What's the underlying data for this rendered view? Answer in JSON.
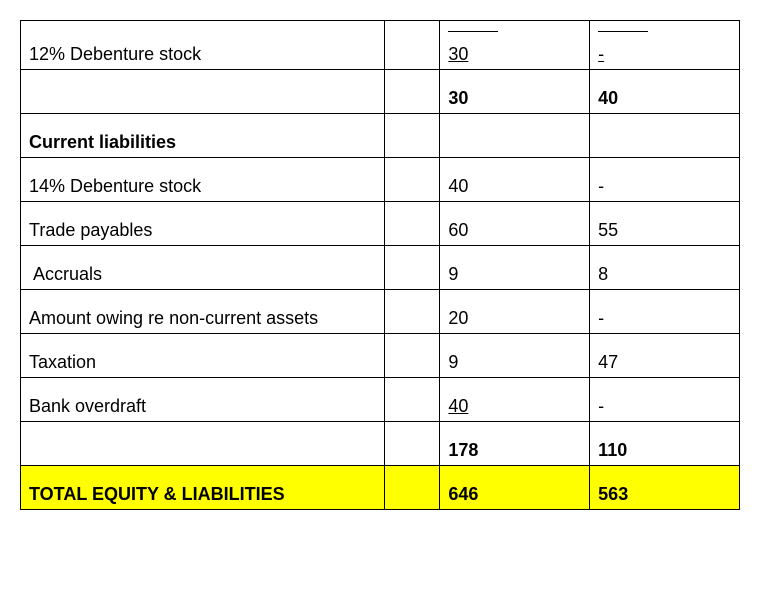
{
  "table": {
    "rows": [
      {
        "label": "12% Debenture stock",
        "label_bold": false,
        "label_extra_pad": false,
        "val1": "30",
        "val1_underline": true,
        "val1_bold": false,
        "val1_topline": true,
        "val2": "-",
        "val2_underline": true,
        "val2_bold": false,
        "val2_topline": true,
        "highlight": false
      },
      {
        "label": "",
        "label_bold": false,
        "label_extra_pad": false,
        "val1": "30",
        "val1_underline": false,
        "val1_bold": true,
        "val1_topline": false,
        "val2": "40",
        "val2_underline": false,
        "val2_bold": true,
        "val2_topline": false,
        "highlight": false
      },
      {
        "label": "Current liabilities",
        "label_bold": true,
        "label_extra_pad": false,
        "val1": "",
        "val1_underline": false,
        "val1_bold": false,
        "val1_topline": false,
        "val2": "",
        "val2_underline": false,
        "val2_bold": false,
        "val2_topline": false,
        "highlight": false
      },
      {
        "label": "14% Debenture stock",
        "label_bold": false,
        "label_extra_pad": false,
        "val1": "40",
        "val1_underline": false,
        "val1_bold": false,
        "val1_topline": false,
        "val2": "-",
        "val2_underline": false,
        "val2_bold": false,
        "val2_topline": false,
        "highlight": false
      },
      {
        "label": "Trade payables",
        "label_bold": false,
        "label_extra_pad": false,
        "val1": "60",
        "val1_underline": false,
        "val1_bold": false,
        "val1_topline": false,
        "val2": "55",
        "val2_underline": false,
        "val2_bold": false,
        "val2_topline": false,
        "highlight": false
      },
      {
        "label": "Accruals",
        "label_bold": false,
        "label_extra_pad": true,
        "val1": "9",
        "val1_underline": false,
        "val1_bold": false,
        "val1_topline": false,
        "val2": "8",
        "val2_underline": false,
        "val2_bold": false,
        "val2_topline": false,
        "highlight": false
      },
      {
        "label": "Amount owing re non-current assets",
        "label_bold": false,
        "label_extra_pad": false,
        "val1": "20",
        "val1_underline": false,
        "val1_bold": false,
        "val1_topline": false,
        "val2": "-",
        "val2_underline": false,
        "val2_bold": false,
        "val2_topline": false,
        "highlight": false
      },
      {
        "label": "Taxation",
        "label_bold": false,
        "label_extra_pad": false,
        "val1": "9",
        "val1_underline": false,
        "val1_bold": false,
        "val1_topline": false,
        "val2": "47",
        "val2_underline": false,
        "val2_bold": false,
        "val2_topline": false,
        "highlight": false
      },
      {
        "label": "Bank overdraft",
        "label_bold": false,
        "label_extra_pad": false,
        "val1": "40",
        "val1_underline": true,
        "val1_bold": false,
        "val1_topline": false,
        "val2": "-",
        "val2_underline": false,
        "val2_bold": false,
        "val2_topline": false,
        "highlight": false
      },
      {
        "label": "",
        "label_bold": false,
        "label_extra_pad": false,
        "val1": "178",
        "val1_underline": false,
        "val1_bold": true,
        "val1_topline": false,
        "val2": "110",
        "val2_underline": false,
        "val2_bold": true,
        "val2_topline": false,
        "highlight": false
      },
      {
        "label": "TOTAL EQUITY & LIABILITIES",
        "label_bold": true,
        "label_extra_pad": false,
        "val1": "646",
        "val1_underline": false,
        "val1_bold": true,
        "val1_topline": false,
        "val2": "563",
        "val2_underline": false,
        "val2_bold": true,
        "val2_topline": false,
        "highlight": true
      }
    ],
    "colors": {
      "highlight": "#ffff00",
      "border": "#000000",
      "background": "#ffffff",
      "text": "#000000"
    },
    "font_size": 18
  }
}
